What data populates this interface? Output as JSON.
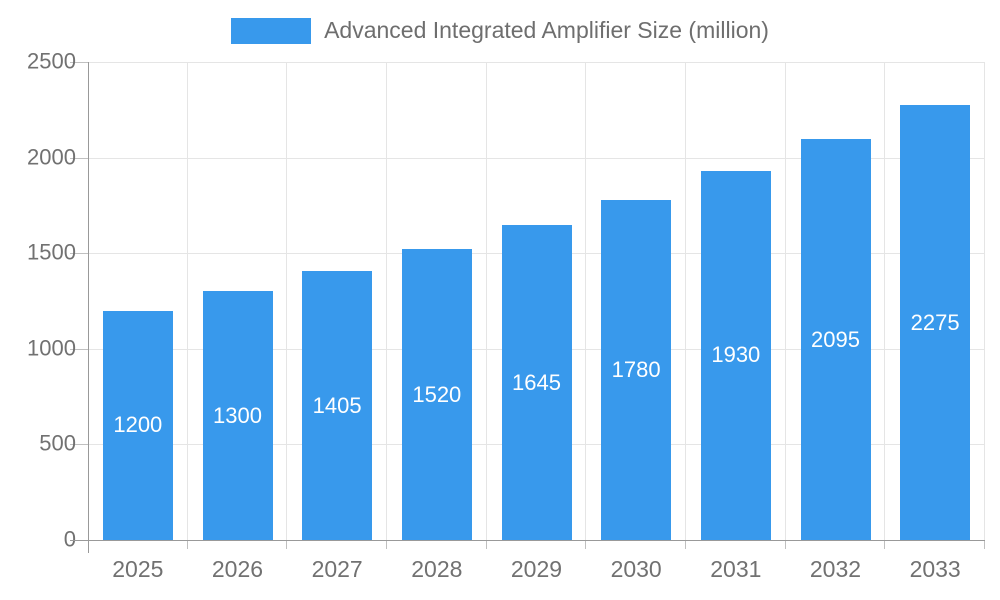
{
  "legend": {
    "label": "Advanced Integrated Amplifier Size (million)"
  },
  "colors": {
    "bar": "#3899EC",
    "grid": "#E5E5E5",
    "axis": "#999999",
    "tick": "#C0C0C0",
    "axis_label": "#717171",
    "legend_text": "#6E6E6E",
    "bar_value_text": "#FFFFFF",
    "background": "#FFFFFF"
  },
  "chart_data": {
    "type": "bar",
    "title": "",
    "xlabel": "",
    "ylabel": "",
    "categories": [
      "2025",
      "2026",
      "2027",
      "2028",
      "2029",
      "2030",
      "2031",
      "2032",
      "2033"
    ],
    "series": [
      {
        "name": "Advanced Integrated Amplifier Size (million)",
        "values": [
          1200,
          1300,
          1405,
          1520,
          1645,
          1780,
          1930,
          2095,
          2275
        ]
      }
    ],
    "ylim": [
      0,
      2500
    ],
    "yticks": [
      0,
      500,
      1000,
      1500,
      2000,
      2500
    ],
    "grid": true,
    "legend_position": "top-center",
    "value_labels": "inside-center-white"
  }
}
